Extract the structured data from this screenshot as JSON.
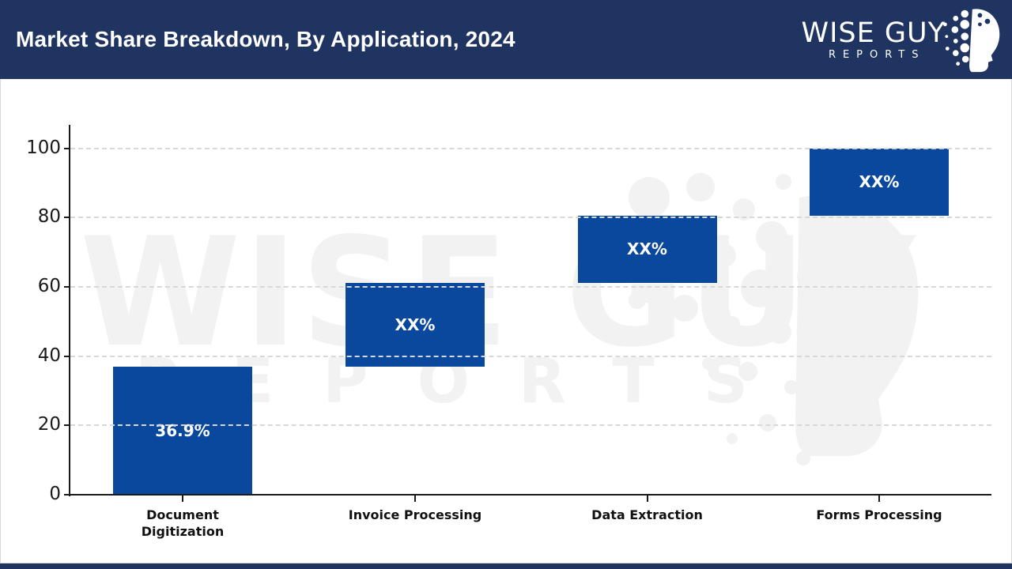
{
  "header": {
    "title": "Market Share Breakdown, By Application, 2024",
    "logo": {
      "line1": "WISE GUY",
      "line2": "REPORTS"
    }
  },
  "watermark": {
    "line1": "WISE GUY",
    "line2": "REPORTS"
  },
  "colors": {
    "header_bg": "#1f3461",
    "bar": "#0a489e",
    "grid": "#d8d8d8",
    "axis": "#1a1a1a",
    "watermark": "#f2f2f2",
    "border": "#d9d9d9",
    "bar_label": "#ffffff"
  },
  "chart_data": {
    "type": "bar",
    "subtype": "waterfall",
    "title": "Market Share Breakdown, By Application, 2024",
    "categories": [
      "Document\nDigitization",
      "Invoice Processing",
      "Data Extraction",
      "Forms Processing"
    ],
    "segments": [
      {
        "category": "Document Digitization",
        "start": 0,
        "end": 36.9,
        "label": "36.9%"
      },
      {
        "category": "Invoice Processing",
        "start": 36.9,
        "end": 61.2,
        "label": "XX%"
      },
      {
        "category": "Data Extraction",
        "start": 61.2,
        "end": 80.6,
        "label": "XX%"
      },
      {
        "category": "Forms Processing",
        "start": 80.6,
        "end": 100,
        "label": "XX%"
      }
    ],
    "y_ticks": [
      0,
      20,
      40,
      60,
      80,
      100
    ],
    "ylim": [
      0,
      107
    ],
    "grid": "horizontal-dashed",
    "legend": "none"
  }
}
